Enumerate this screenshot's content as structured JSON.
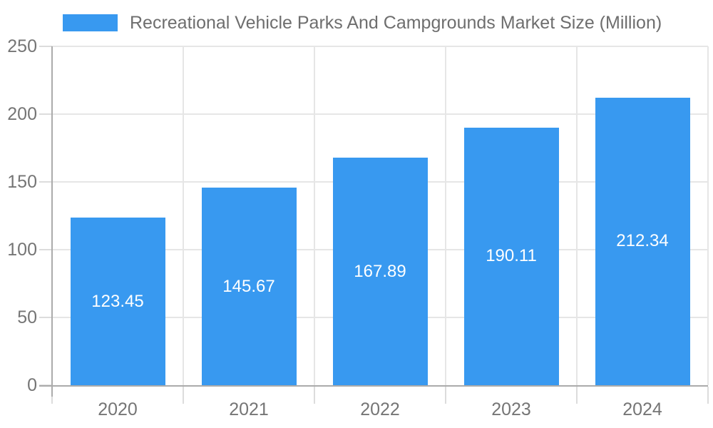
{
  "legend": {
    "label": "Recreational Vehicle Parks And Campgrounds Market Size (Million)"
  },
  "chart_data": {
    "type": "bar",
    "title": "Recreational Vehicle Parks And Campgrounds Market Size (Million)",
    "categories": [
      "2020",
      "2021",
      "2022",
      "2023",
      "2024"
    ],
    "values": [
      123.45,
      145.67,
      167.89,
      190.11,
      212.34
    ],
    "value_labels": [
      "123.45",
      "145.67",
      "167.89",
      "190.11",
      "212.34"
    ],
    "series": [
      {
        "name": "Recreational Vehicle Parks And Campgrounds Market Size (Million)",
        "values": [
          123.45,
          145.67,
          167.89,
          190.11,
          212.34
        ]
      }
    ],
    "xlabel": "",
    "ylabel": "",
    "ylim": [
      0,
      250
    ],
    "yticks": [
      0,
      50,
      100,
      150,
      200,
      250
    ],
    "grid": true,
    "legend_position": "top-left",
    "colors": {
      "bar": "#3899F0",
      "grid": "#e6e6e6",
      "axis": "#ababab",
      "tick": "#dcdcdc",
      "text": "#757575",
      "title": "#6e6e6e",
      "bar_label": "#ffffff",
      "background": "#ffffff"
    }
  }
}
